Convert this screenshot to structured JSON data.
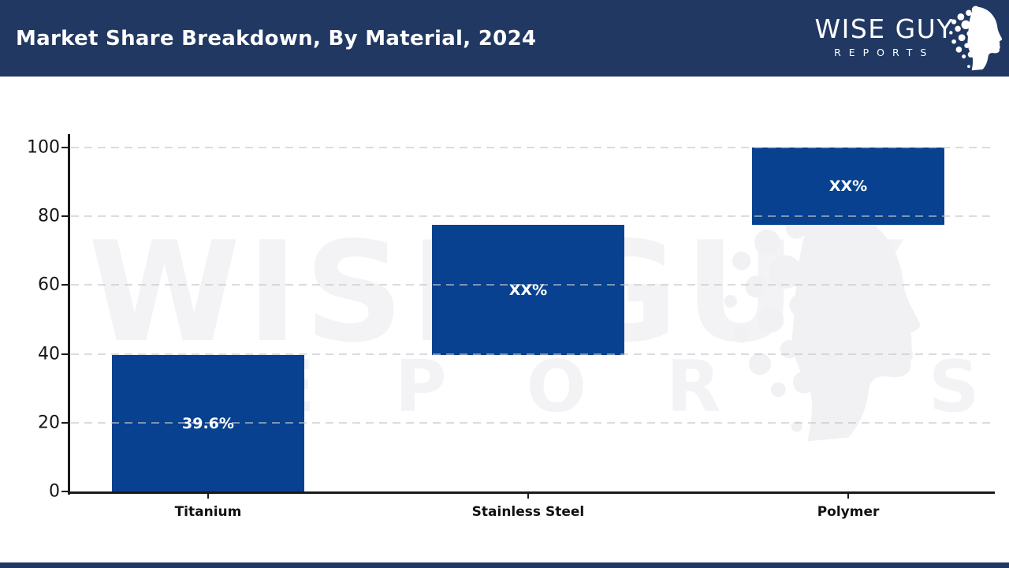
{
  "header": {
    "title": "Market Share Breakdown, By Material, 2024",
    "background_color": "#213863",
    "logo": {
      "brand_line1": "WISE GUY",
      "brand_line2": "REPORTS"
    }
  },
  "watermark": {
    "line1": "WISE GUY",
    "line2": "REPORTS"
  },
  "footer": {
    "bar_color": "#213863"
  },
  "chart_data": {
    "type": "bar",
    "subtype": "waterfall",
    "title": "Market Share Breakdown, By Material, 2024",
    "categories": [
      "Titanium",
      "Stainless Steel",
      "Polymer"
    ],
    "segments": [
      {
        "category": "Titanium",
        "start": 0,
        "end": 39.6,
        "label": "39.6%"
      },
      {
        "category": "Stainless Steel",
        "start": 39.6,
        "end": 77.5,
        "label": "XX%"
      },
      {
        "category": "Polymer",
        "start": 77.5,
        "end": 100,
        "label": "XX%"
      }
    ],
    "ylim": [
      0,
      100
    ],
    "yticks": [
      0,
      20,
      40,
      60,
      80,
      100
    ],
    "grid": "dashed-horizontal",
    "legend": "none",
    "xlabel": "",
    "ylabel": "",
    "bar_color": "#07418F",
    "bar_label_color": "#ffffff",
    "axis_color": "#1a1a1a",
    "gridline_color": "#dcdcdc"
  }
}
